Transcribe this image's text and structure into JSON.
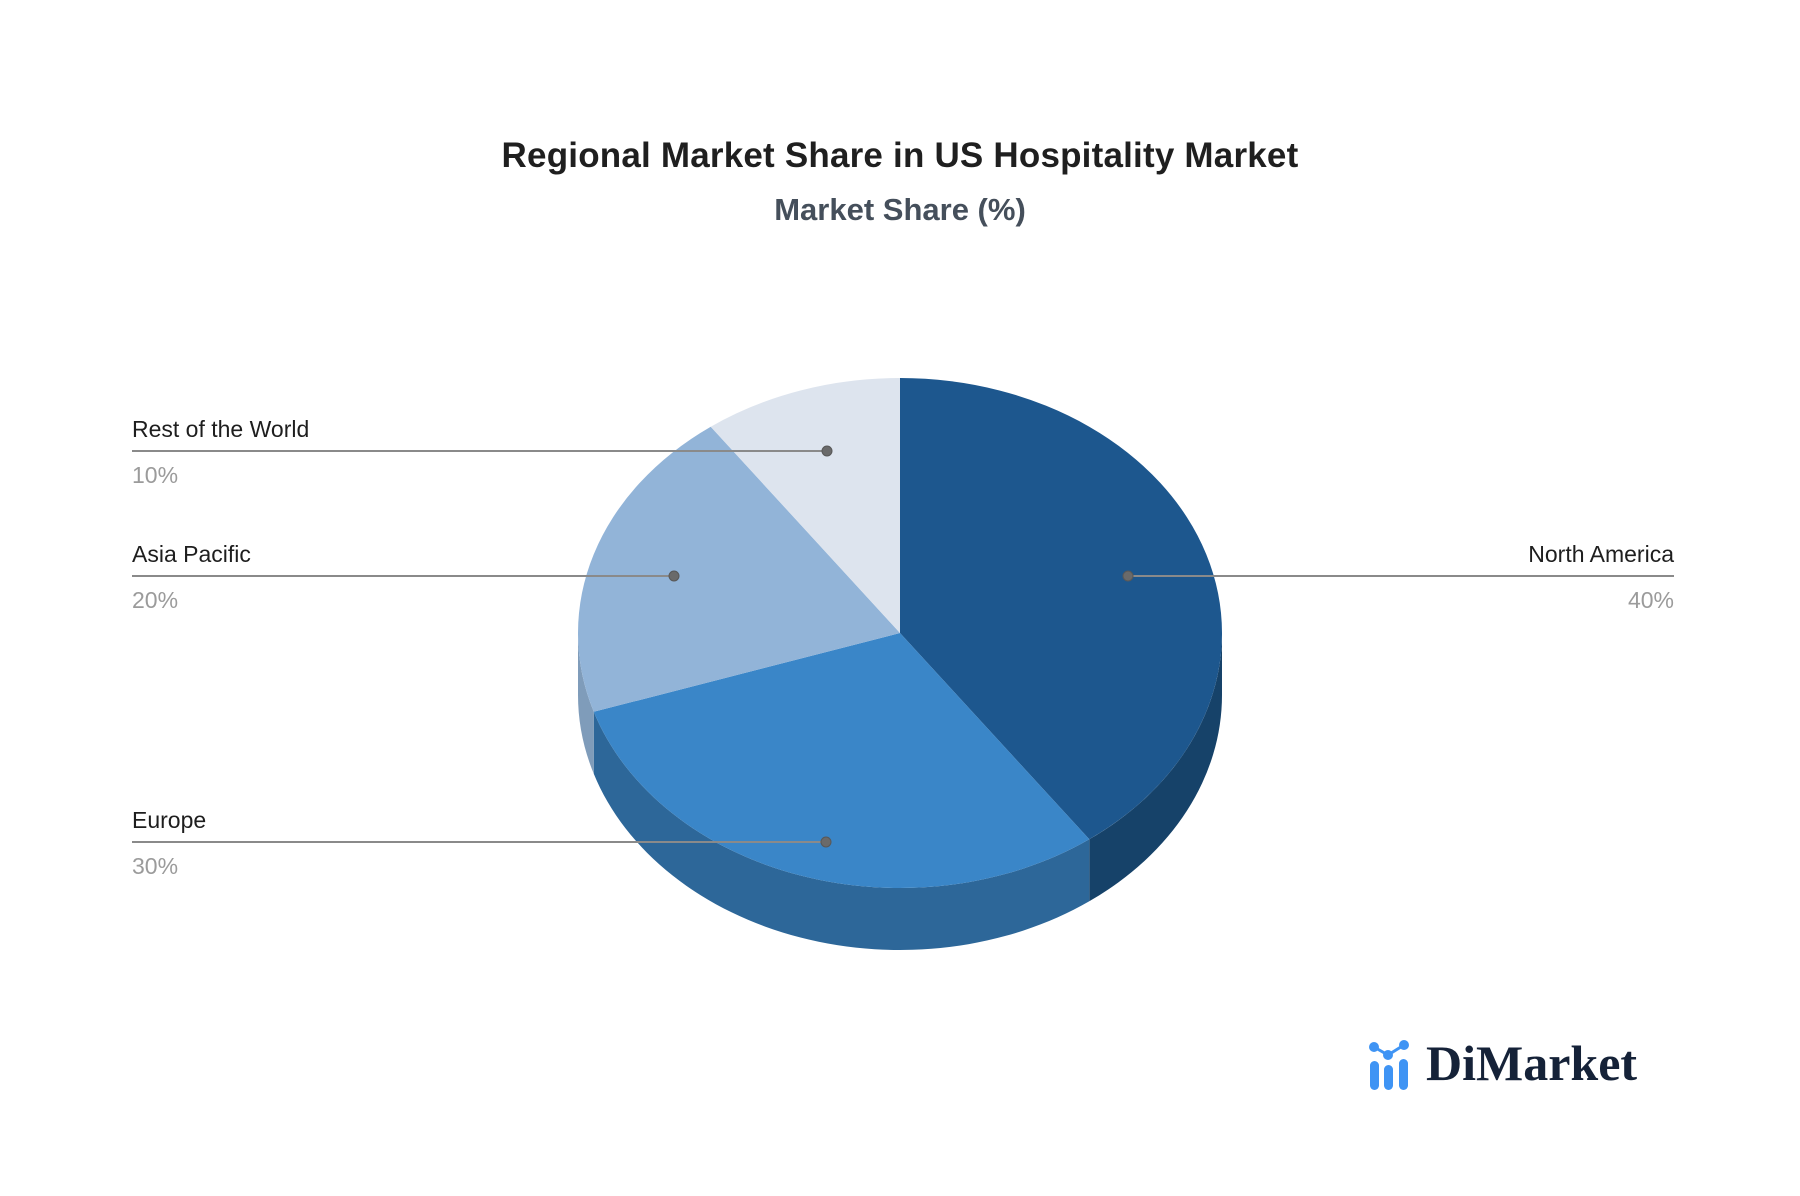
{
  "header": {
    "title": "Regional Market Share in US Hospitality Market",
    "subtitle": "Market Share (%)"
  },
  "brand": {
    "name": "DiMarket",
    "icon": "bar-line-chart-icon",
    "icon_color": "#3f94f4",
    "text_color": "#152238"
  },
  "chart_data": {
    "type": "pie",
    "style": "3d",
    "title": "Regional Market Share in US Hospitality Market",
    "subtitle": "Market Share (%)",
    "unit": "%",
    "start_angle_deg": 0,
    "direction": "clockwise",
    "legend": "none",
    "slices": [
      {
        "label": "North America",
        "value": 40,
        "display_value": "40%",
        "color": "#1d578e",
        "side_color": "#164269"
      },
      {
        "label": "Europe",
        "value": 30,
        "display_value": "30%",
        "color": "#3a86c8",
        "side_color": "#2d6799"
      },
      {
        "label": "Asia Pacific",
        "value": 20,
        "display_value": "20%",
        "color": "#92b4d8",
        "side_color": "#7f9cba"
      },
      {
        "label": "Rest of the World",
        "value": 10,
        "display_value": "10%",
        "color": "#dde4ee",
        "side_color": "#c3cedd"
      }
    ],
    "label_text_color": "#1e1e1e",
    "value_text_color": "#9b9b9b",
    "connector_color": "#8a8a8a",
    "connector_dot_color": "#6a6a6a"
  }
}
